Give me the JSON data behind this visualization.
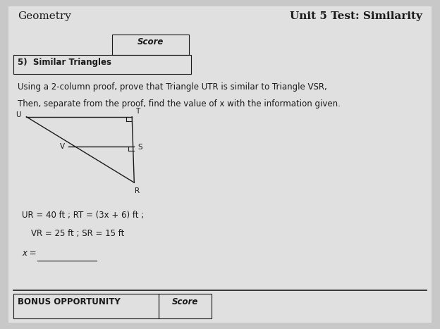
{
  "background_color": "#c8c8c8",
  "paper_color": "#e0e0e0",
  "title_left": "Geometry",
  "title_right": "Unit 5 Test: Similarity",
  "score_label": "Score",
  "section_label": "5)  Similar Triangles",
  "instruction_line1": "Using a 2-column proof, prove that Triangle UTR is similar to Triangle VSR,",
  "instruction_line2": "Then, separate from the proof, find the value of x with the information given.",
  "measurements_line1": "UR = 40 ft ; RT = (3x + 6) ft ;",
  "measurements_line2": "VR = 25 ft ; SR = 15 ft",
  "x_label": "x =",
  "bonus_label": "BONUS OPPORTUNITY",
  "bonus_score": "Score",
  "font_color": "#1a1a1a",
  "line_color": "#1a1a1a",
  "title_fontsize": 11,
  "body_fontsize": 8.5,
  "small_fontsize": 7.5,
  "U": [
    0.06,
    0.645
  ],
  "T": [
    0.3,
    0.645
  ],
  "R": [
    0.305,
    0.445
  ],
  "V": [
    0.155,
    0.555
  ],
  "S": [
    0.305,
    0.555
  ]
}
